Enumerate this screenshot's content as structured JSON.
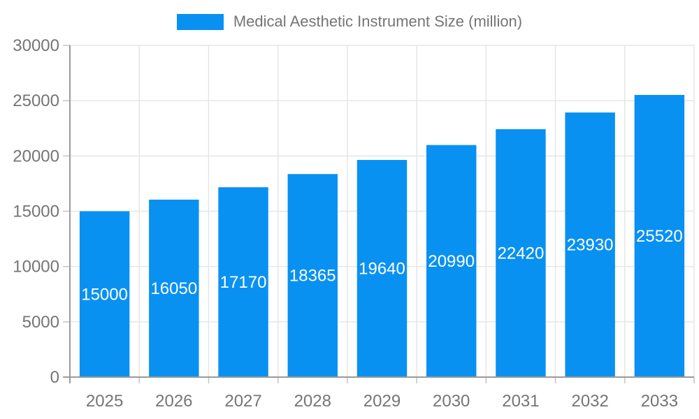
{
  "legend": {
    "label": "Medical Aesthetic Instrument Size (million)",
    "swatch_color": "#0991f1"
  },
  "chart_data": {
    "type": "bar",
    "title": "Medical Aesthetic Instrument Size (million)",
    "series_name": "Medical Aesthetic Instrument Size (million)",
    "categories": [
      "2025",
      "2026",
      "2027",
      "2028",
      "2029",
      "2030",
      "2031",
      "2032",
      "2033"
    ],
    "values": [
      15000,
      16050,
      17170,
      18365,
      19640,
      20990,
      22420,
      23930,
      25520
    ],
    "value_labels": [
      "15000",
      "16050",
      "17170",
      "18365",
      "19640",
      "20990",
      "22420",
      "23930",
      "25520"
    ],
    "xlabel": "",
    "ylabel": "",
    "ylim": [
      0,
      30000
    ],
    "ytick_interval": 5000,
    "yticks": [
      0,
      5000,
      10000,
      15000,
      20000,
      25000,
      30000
    ],
    "ytick_labels": [
      "0",
      "5000",
      "10000",
      "15000",
      "20000",
      "25000",
      "30000"
    ],
    "grid": true,
    "legend_position": "top",
    "bar_color": "#0991f1",
    "value_label_color": "#ffffff",
    "axis_text_color": "#757575",
    "grid_color": "#e6e6e6",
    "axis_line_color": "#9a9a9a",
    "tick_color": "#c4c4c4"
  }
}
